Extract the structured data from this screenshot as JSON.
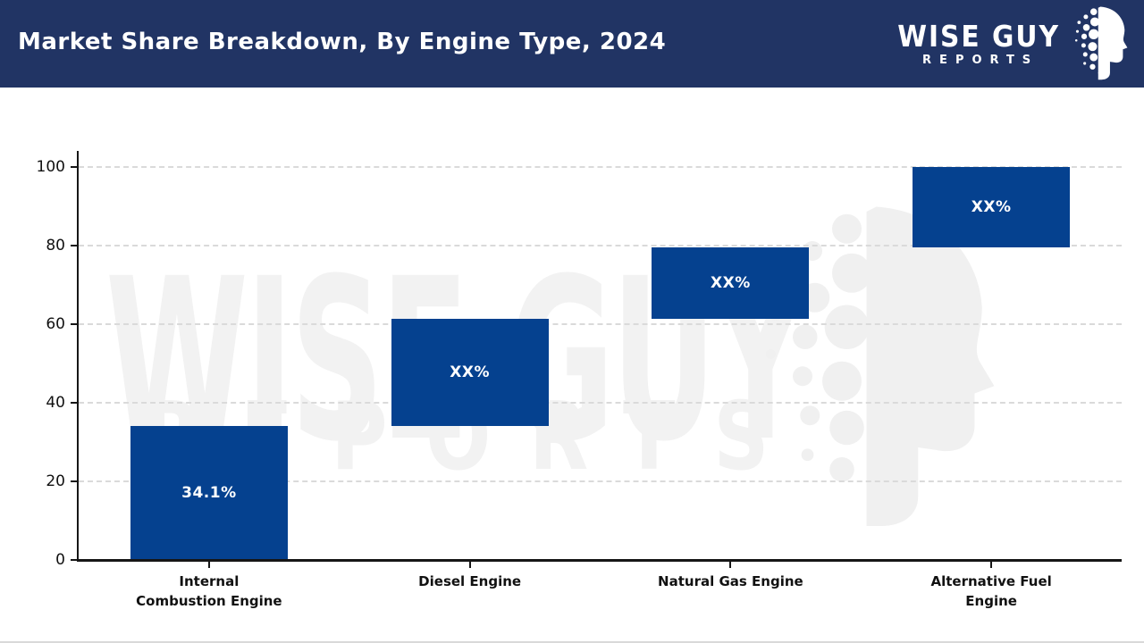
{
  "header": {
    "logo": {
      "line1": "WISE GUY",
      "line2": "REPORTS"
    }
  },
  "watermark": {
    "line1": "WISE GUY",
    "line2": "REPORTS",
    "head_icon": "wiseguy-head-watermark-icon"
  },
  "colors": {
    "header_bg": "#213464",
    "bar": "#05418f",
    "bar_label": "#ffffff",
    "axis": "#161616",
    "gridline": "#dadada",
    "watermark": "#f2f2f2"
  },
  "chart_data": {
    "type": "bar",
    "subtype": "waterfall",
    "title": "Market Share Breakdown, By Engine Type, 2024",
    "xlabel": "",
    "ylabel": "",
    "ylim": [
      0,
      100
    ],
    "yticks": [
      0,
      20,
      40,
      60,
      80,
      100
    ],
    "grid": "horizontal-dashed",
    "legend": "none",
    "categories": [
      [
        "Internal",
        "Combustion Engine"
      ],
      [
        "Diesel Engine"
      ],
      [
        "Natural Gas Engine"
      ],
      [
        "Alternative Fuel",
        "Engine"
      ]
    ],
    "segments": [
      {
        "category": "Internal Combustion Engine",
        "start": 0,
        "end": 34.1,
        "label": "34.1%"
      },
      {
        "category": "Diesel Engine",
        "start": 34.1,
        "end": 61.4,
        "label": "XX%"
      },
      {
        "category": "Natural Gas Engine",
        "start": 61.4,
        "end": 79.5,
        "label": "XX%"
      },
      {
        "category": "Alternative Fuel Engine",
        "start": 79.5,
        "end": 100,
        "label": "XX%"
      }
    ],
    "bar_color": "#05418f",
    "label_color": "#ffffff"
  }
}
